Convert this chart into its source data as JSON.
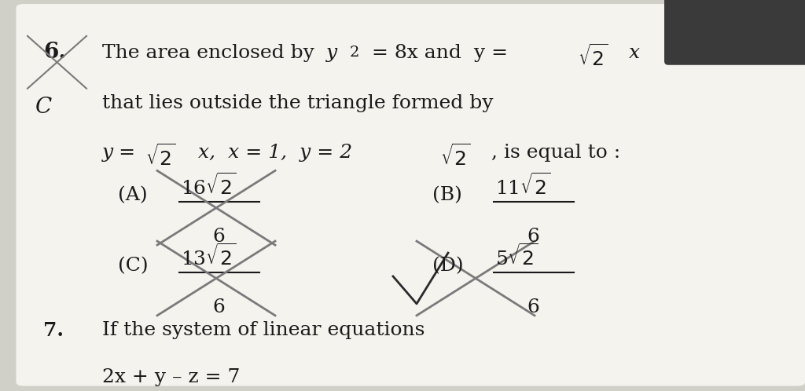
{
  "bg_color": "#d0cfc8",
  "paper_color": "#f5f3ee",
  "question_number": "6.",
  "label_c": "C",
  "line1": "The area enclosed by y",
  "sup2": "2",
  "line1b": " = 8x and y = ",
  "sqrt2": "√2",
  "line1c": "x",
  "line2": "that lies outside the triangle formed by",
  "line3a": "y = ",
  "sqrt2b": "√2",
  "line3b": "x, x = 1, y = 2",
  "sqrt2c": "√2",
  "line3c": ", is equal to :",
  "optA_label": "(A)",
  "optA_num": "16",
  "optA_sqrt": "√2",
  "optA_den": "6",
  "optB_label": "(B)",
  "optB_num": "11",
  "optB_sqrt": "√2",
  "optB_den": "6",
  "optC_label": "(C)",
  "optC_num": "13",
  "optC_sqrt": "√2",
  "optC_den": "6",
  "optD_label": "(D)",
  "optD_num": "5",
  "optD_sqrt": "√2",
  "optD_den": "6",
  "q7_label": "7.",
  "q7_text": "If the system of linear equations",
  "q7_eq": "2x + y – z = 7",
  "text_color": "#1a1a1a",
  "cross_color": "#7a7a7a",
  "tick_color": "#2a2a2a",
  "font_size_main": 18,
  "font_size_options": 18,
  "font_size_q7": 18
}
